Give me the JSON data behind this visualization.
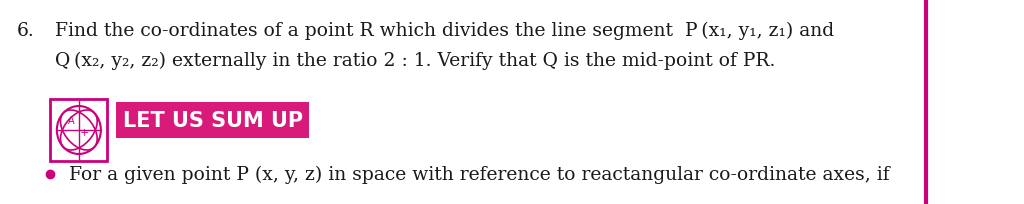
{
  "background_color": "#ffffff",
  "right_border_color": "#cc007a",
  "number": "6.",
  "line1": "Find the co-ordinates of a point R which divides the line segment  P ( x₁, y₁, z₁ ) and",
  "line2": "Q ( x₂, y₂, z₂ ) externally in the ratio 2 : 1. Verify that Q is the mid-point of PR.",
  "banner_text": "LET US SUM UP",
  "banner_bg": "#d81b7a",
  "banner_text_color": "#ffffff",
  "bullet_color": "#cc007a",
  "bullet_line": "For a given point P (x, y, z) in space with reference to reactangular co-ordinate axes, if",
  "text_color": "#1a1a1a",
  "font_size_main": 13.5,
  "font_size_banner": 15,
  "font_size_bullet": 13.5
}
